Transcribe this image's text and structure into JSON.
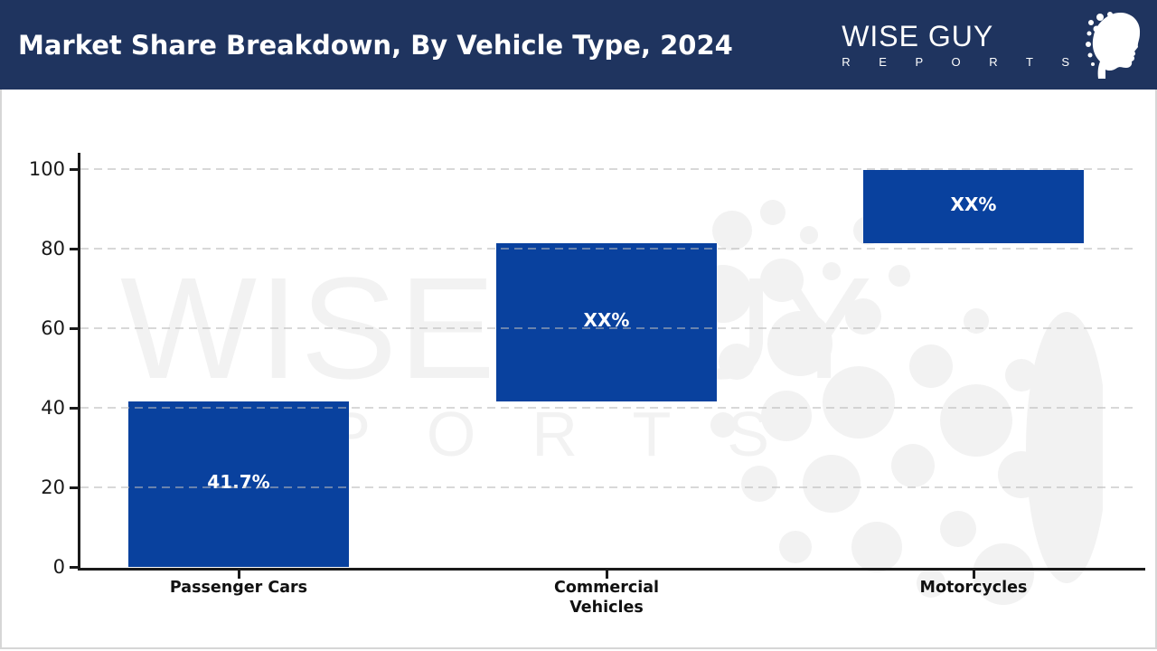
{
  "header": {
    "title": "Market Share Breakdown, By Vehicle Type, 2024",
    "logo": {
      "name_line": "WISE GUY",
      "reports_line": "R E P O R T S"
    }
  },
  "watermark": {
    "line1": "WISE GUY",
    "line2": "REPORTS"
  },
  "chart_data": {
    "type": "bar",
    "variant": "floating-segment-waterfall",
    "title": "Market Share Breakdown, By Vehicle Type, 2024",
    "categories": [
      "Passenger Cars",
      "Commercial Vehicles",
      "Motorcycles"
    ],
    "categories_display": [
      "Passenger Cars",
      "Commercial\nVehicles",
      "Motorcycles"
    ],
    "segments": [
      {
        "category": "Passenger Cars",
        "start": 0,
        "end": 41.7,
        "label": "41.7%"
      },
      {
        "category": "Commercial Vehicles",
        "start": 41.7,
        "end": 81.4,
        "label": "XX%"
      },
      {
        "category": "Motorcycles",
        "start": 81.4,
        "end": 99.8,
        "label": "XX%"
      }
    ],
    "yticks": [
      0,
      20,
      40,
      60,
      80,
      100
    ],
    "ylim": [
      0,
      105
    ],
    "xlabel": "",
    "ylabel": "",
    "grid": "horizontal-dashed",
    "legend": "none",
    "bar_color": "#09419e",
    "value_label_color": "#ffffff"
  },
  "colors": {
    "header_bg": "#1f345f",
    "watermark": "#f2f2f2",
    "grid": "#bdbdbd",
    "axis": "#1a1a1a",
    "frame_border": "#d6d6d6"
  }
}
